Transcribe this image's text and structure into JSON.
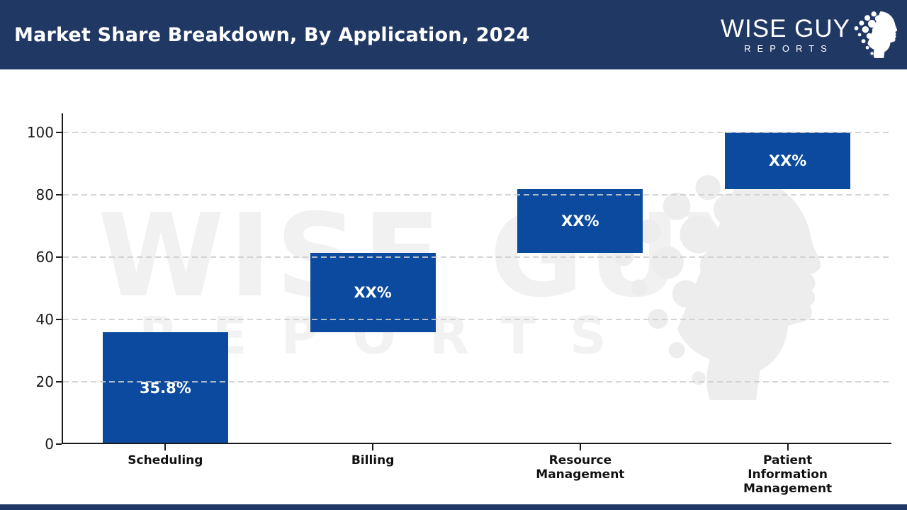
{
  "header": {
    "title": "Market Share Breakdown, By Application, 2024",
    "logo": {
      "name": "WISE GUY",
      "sub": "REPORTS"
    }
  },
  "watermark": {
    "name": "WISE GUY",
    "sub": "REPORTS"
  },
  "chart_data": {
    "type": "bar",
    "subtype": "waterfall",
    "title": "Market Share Breakdown, By Application, 2024",
    "categories": [
      "Scheduling",
      "Billing",
      "Resource\nManagement",
      "Patient\nInformation\nManagement"
    ],
    "segments": [
      {
        "category": "Scheduling",
        "start": 0,
        "end": 35.8,
        "label": "35.8%"
      },
      {
        "category": "Billing",
        "start": 35.8,
        "end": 61.3,
        "label": "XX%"
      },
      {
        "category": "Resource\nManagement",
        "start": 61.3,
        "end": 81.7,
        "label": "XX%"
      },
      {
        "category": "Patient\nInformation\nManagement",
        "start": 81.7,
        "end": 100,
        "label": "XX%"
      }
    ],
    "yticks": [
      0,
      20,
      40,
      60,
      80,
      100
    ],
    "ylim": [
      0,
      105
    ],
    "xlabel": "",
    "ylabel": "",
    "grid": "horizontal-dashed",
    "legend": "none",
    "bar_color": "#0b4a9f",
    "value_label_color": "#ffffff"
  },
  "colors": {
    "header_bg": "#1f3864",
    "footer_bg": "#1f3864",
    "bar": "#0b4a9f",
    "gridline": "#d9d9d9",
    "axis": "#1a1a1a",
    "watermark": "#f1f1f1"
  }
}
